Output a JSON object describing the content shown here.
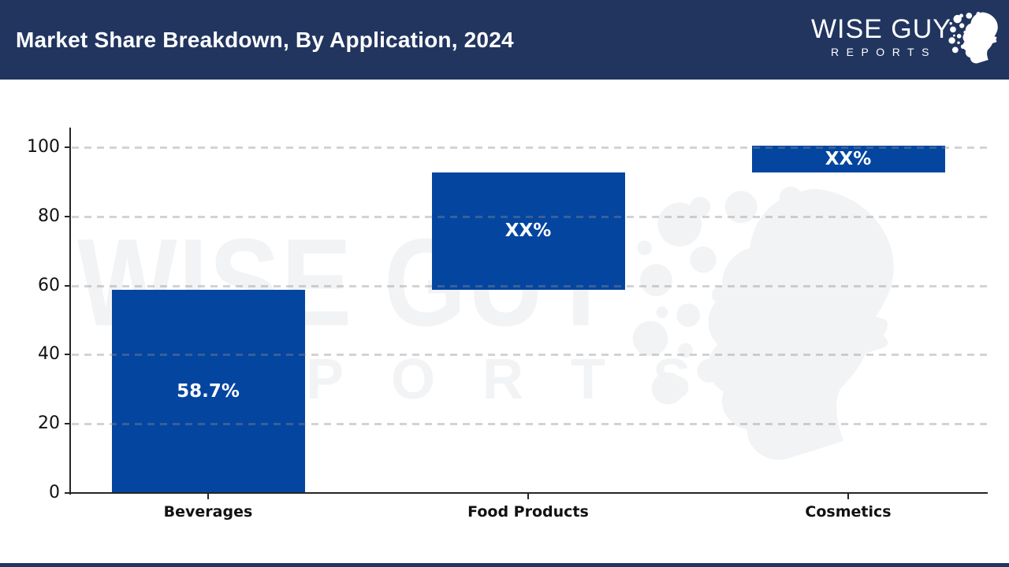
{
  "header": {
    "title": "Market Share Breakdown, By Application, 2024",
    "background": "#21355f",
    "logo": {
      "wordmark": "WISE GUY",
      "subtext": "REPORTS"
    }
  },
  "watermark": {
    "line1": "WISE GUY",
    "line2": "REPORTS"
  },
  "footer": {
    "background": "#21355f"
  },
  "chart_data": {
    "type": "bar",
    "variant": "waterfall-stacked-percentage",
    "title": "Market Share Breakdown, By Application, 2024",
    "categories": [
      "Beverages",
      "Food Products",
      "Cosmetics"
    ],
    "series": [
      {
        "name": "Market share (%)",
        "segments": [
          {
            "category": "Beverages",
            "start": 0,
            "end": 58.7,
            "label": "58.7%"
          },
          {
            "category": "Food Products",
            "start": 58.7,
            "end": 92.8,
            "label": "XX%"
          },
          {
            "category": "Cosmetics",
            "start": 92.8,
            "end": 100.5,
            "label": "XX%"
          }
        ]
      }
    ],
    "xlabel": "",
    "ylabel": "",
    "yticks": [
      0,
      20,
      40,
      60,
      80,
      100
    ],
    "ylim": [
      0,
      105.7
    ],
    "grid": {
      "axis": "y",
      "style": "dashed",
      "color": "#dcdcdc",
      "drawn_over_bars": true
    },
    "legend": "none",
    "bar_color": "#0445a0",
    "bar_label_color": "#ffffff",
    "axis_color": "#262626"
  }
}
